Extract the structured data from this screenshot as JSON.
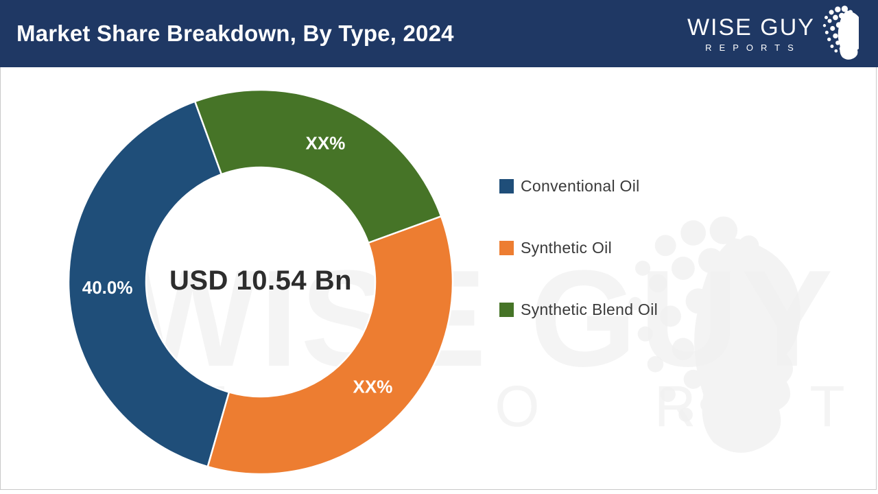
{
  "header": {
    "title": "Market Share Breakdown, By Type, 2024",
    "logo": {
      "line1": "WISE GUY",
      "line2": "REPORTS"
    }
  },
  "watermark": {
    "line1": "WISE GUY",
    "line2": "E P O R T S"
  },
  "chart_data": {
    "type": "pie",
    "subtype": "donut",
    "title": "Market Share Breakdown, By Type, 2024",
    "center_label": "USD 10.54 Bn",
    "start_angle_deg": 110,
    "direction": "counterclockwise",
    "outer_radius": 280,
    "inner_radius": 167,
    "gap_color": "#ffffff",
    "legend_position": "right",
    "series": [
      {
        "name": "Conventional Oil",
        "value_pct": 40.0,
        "label": "40.0%",
        "color": "#1f4e79"
      },
      {
        "name": "Synthetic Oil",
        "value_pct": 35.0,
        "label": "XX%",
        "color": "#ed7d31"
      },
      {
        "name": "Synthetic Blend Oil",
        "value_pct": 25.0,
        "label": "XX%",
        "color": "#467427"
      }
    ]
  },
  "legend": {
    "items": [
      {
        "label": "Conventional Oil",
        "color": "#1f4e79"
      },
      {
        "label": "Synthetic Oil",
        "color": "#ed7d31"
      },
      {
        "label": "Synthetic Blend Oil",
        "color": "#467427"
      }
    ]
  },
  "colors": {
    "header_bg": "#1f3864",
    "watermark": "#f4f4f4",
    "border": "#c9c9c9",
    "center_text": "#2d2d2d",
    "legend_text": "#3a3a3a"
  }
}
